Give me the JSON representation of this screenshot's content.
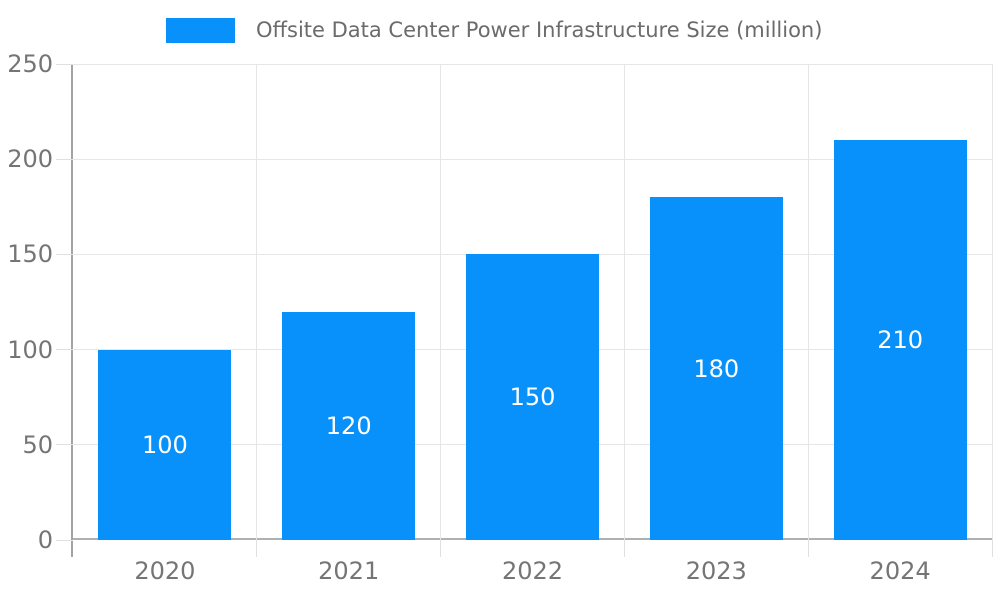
{
  "chart_data": {
    "type": "bar",
    "title": "Offsite Data Center Power Infrastructure Size (million)",
    "legend_position": "top",
    "categories": [
      "2020",
      "2021",
      "2022",
      "2023",
      "2024"
    ],
    "values": [
      100,
      120,
      150,
      180,
      210
    ],
    "bar_value_labels": [
      "100",
      "120",
      "150",
      "180",
      "210"
    ],
    "ylim": [
      0,
      250
    ],
    "yticks": [
      0,
      50,
      100,
      150,
      200,
      250
    ],
    "grid": true,
    "colors": {
      "bar": "#0991fb",
      "bar_label_text": "#ffffff",
      "legend_text": "#6b6b6b",
      "axis_text": "#757575",
      "gridline": "#e6e6e6",
      "tick": "#e0e0e0",
      "y_axis_line": "#a3a3a3",
      "x_axis_line": "#b0b0b0",
      "background": "#ffffff"
    }
  }
}
